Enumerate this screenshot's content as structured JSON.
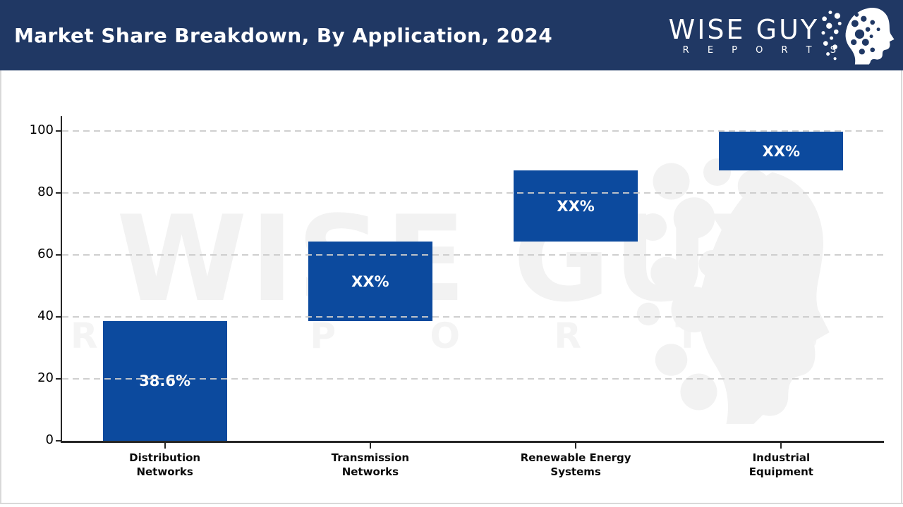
{
  "header": {
    "title": "Market Share Breakdown, By Application, 2024",
    "logo": {
      "brand": "WISE GUY",
      "sub": "R E P O R T S",
      "icon": "dotted-head-profile-icon"
    }
  },
  "watermark": {
    "big": "WISE GUY",
    "sub": "R E P O R T S",
    "icon": "dotted-head-profile-icon"
  },
  "colors": {
    "header_bg": "#203864",
    "bar": "#0c4a9e",
    "bar_label": "#ffffff",
    "axis": "#262626",
    "grid": "#cbcbcb",
    "watermark": "#f2f2f2"
  },
  "chart_data": {
    "type": "bar",
    "subtype": "waterfall-floating-bars",
    "title": "Market Share Breakdown, By Application, 2024",
    "xlabel": "",
    "ylabel": "",
    "ylim": [
      0,
      105
    ],
    "yticks": [
      0,
      20,
      40,
      60,
      80,
      100
    ],
    "grid": "horizontal dashed",
    "legend": "none",
    "categories": [
      "Distribution\nNetworks",
      "Transmission\nNetworks",
      "Renewable Energy\nSystems",
      "Industrial\nEquipment"
    ],
    "bars": [
      {
        "category": "Distribution Networks",
        "start": 0,
        "end": 38.6,
        "delta": 38.6,
        "label": "38.6%"
      },
      {
        "category": "Transmission Networks",
        "start": 38.6,
        "end": 64.3,
        "delta": 25.7,
        "label": "XX%"
      },
      {
        "category": "Renewable Energy Systems",
        "start": 64.3,
        "end": 87.2,
        "delta": 22.9,
        "label": "XX%"
      },
      {
        "category": "Industrial Equipment",
        "start": 87.2,
        "end": 99.8,
        "delta": 12.6,
        "label": "XX%"
      }
    ],
    "bar_color": "#0c4a9e",
    "label_color": "#ffffff"
  }
}
